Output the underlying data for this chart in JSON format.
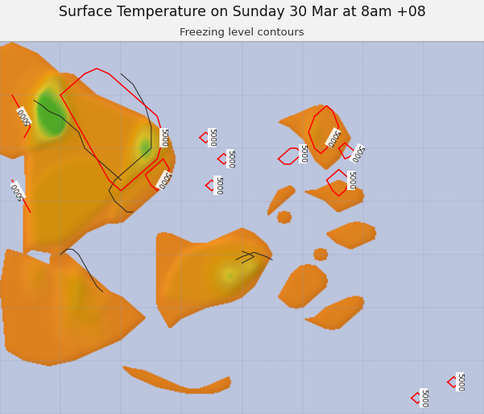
{
  "title": "Surface Temperature on Sunday 30 Mar at 8am +08",
  "subtitle": "Freezing level contours",
  "title_fontsize": 12.5,
  "subtitle_fontsize": 9.5,
  "bg_color": "#bcc5de",
  "header_bg": "#f2f2f2",
  "fig_width": 6.01,
  "fig_height": 5.14,
  "dpi": 100,
  "lon_min": 95.0,
  "lon_max": 135.0,
  "lat_min": -10.0,
  "lat_max": 25.0,
  "contour_color": "#ff0000",
  "contour_label": "5000",
  "border_color": "#333333",
  "land_base": "#d4721a",
  "land_low": "#e08820",
  "land_mid": "#c06010",
  "land_high": "#a04808",
  "land_vhigh": "#d4b825",
  "land_green": "#5aaa38",
  "ocean_color": "#bcc5de"
}
